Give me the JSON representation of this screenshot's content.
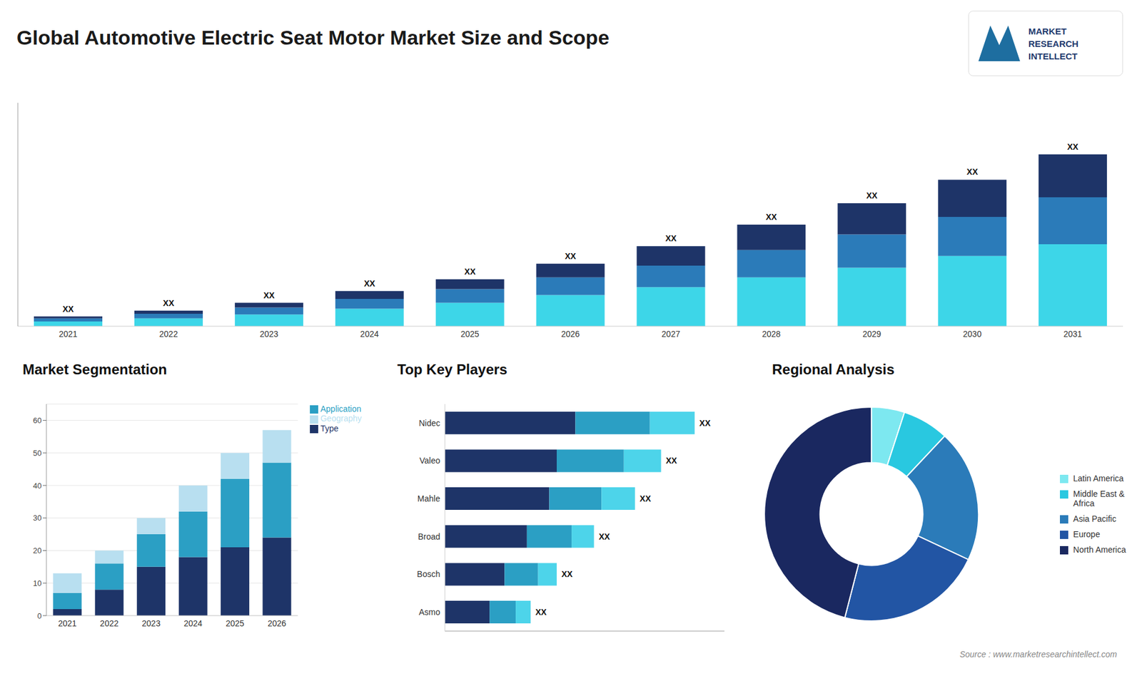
{
  "chart_data": [
    {
      "type": "bar",
      "title": "Global Automotive Electric Seat Motor Market Size and Scope",
      "categories": [
        "2021",
        "2022",
        "2023",
        "2024",
        "2025",
        "2026",
        "2027",
        "2028",
        "2029",
        "2030",
        "2031"
      ],
      "series": [
        {
          "color": "#3dd6e8",
          "values": [
            1.2,
            2.0,
            3.0,
            4.5,
            6.0,
            8.0,
            10.0,
            12.5,
            15.0,
            18.0,
            21.0
          ]
        },
        {
          "color": "#2b7bb9",
          "values": [
            0.8,
            1.2,
            1.8,
            2.5,
            3.5,
            4.5,
            5.5,
            7.0,
            8.5,
            10.0,
            12.0
          ]
        },
        {
          "color": "#1e3468",
          "values": [
            0.5,
            0.8,
            1.2,
            2.0,
            2.5,
            3.5,
            5.0,
            6.5,
            8.0,
            9.5,
            11.0
          ]
        }
      ],
      "stacked": true,
      "ylim": [
        0,
        57.2
      ],
      "tick_labels": "x",
      "grid": false,
      "annotations": [
        "XX",
        "XX",
        "XX",
        "XX",
        "XX",
        "XX",
        "XX",
        "XX",
        "XX",
        "XX",
        "XX"
      ]
    },
    {
      "type": "bar",
      "title": "Market Segmentation",
      "categories": [
        "2021",
        "2022",
        "2023",
        "2024",
        "2025",
        "2026"
      ],
      "series": [
        {
          "name": "Type",
          "color": "#1e3468",
          "values": [
            2,
            8,
            15,
            18,
            21,
            24
          ]
        },
        {
          "name": "Application",
          "color": "#2b9fc4",
          "values": [
            5,
            8,
            10,
            14,
            21,
            23
          ]
        },
        {
          "name": "Geography",
          "color": "#b8dff0",
          "values": [
            6,
            4,
            5,
            8,
            8,
            10
          ]
        }
      ],
      "stacked": true,
      "ylim": [
        0,
        65
      ],
      "yticks": [
        0,
        10,
        20,
        30,
        40,
        50,
        60
      ],
      "grid": true,
      "legend": "right"
    },
    {
      "type": "bar",
      "title": "Top Key Players",
      "orientation": "horizontal",
      "categories": [
        "Nidec",
        "Valeo",
        "Mahle",
        "Broad",
        "Bosch",
        "Asmo"
      ],
      "series": [
        {
          "color": "#1e3468",
          "values": [
            35,
            30,
            28,
            22,
            16,
            12
          ]
        },
        {
          "color": "#2b9fc4",
          "values": [
            20,
            18,
            14,
            12,
            9,
            7
          ]
        },
        {
          "color": "#4dd4ea",
          "values": [
            12,
            10,
            9,
            6,
            5,
            4
          ]
        }
      ],
      "stacked": true,
      "xlim": [
        0,
        75
      ],
      "tick_labels": "y",
      "grid": false,
      "annotations": [
        "XX",
        "XX",
        "XX",
        "XX",
        "XX",
        "XX"
      ]
    },
    {
      "type": "pie",
      "title": "Regional Analysis",
      "categories": [
        "Latin America",
        "Middle East &\nAfrica",
        "Asia Pacific",
        "Europe",
        "North America"
      ],
      "values": [
        5,
        7,
        20,
        22,
        46
      ],
      "colors": [
        "#7de8f0",
        "#29c8e0",
        "#2b7bb9",
        "#2255a4",
        "#1a2860"
      ],
      "legend": "right",
      "annotations": [
        "MARKET",
        "RESEARCH",
        "INTELLECT",
        "Source : www.marketresearchintellect.com"
      ]
    }
  ]
}
